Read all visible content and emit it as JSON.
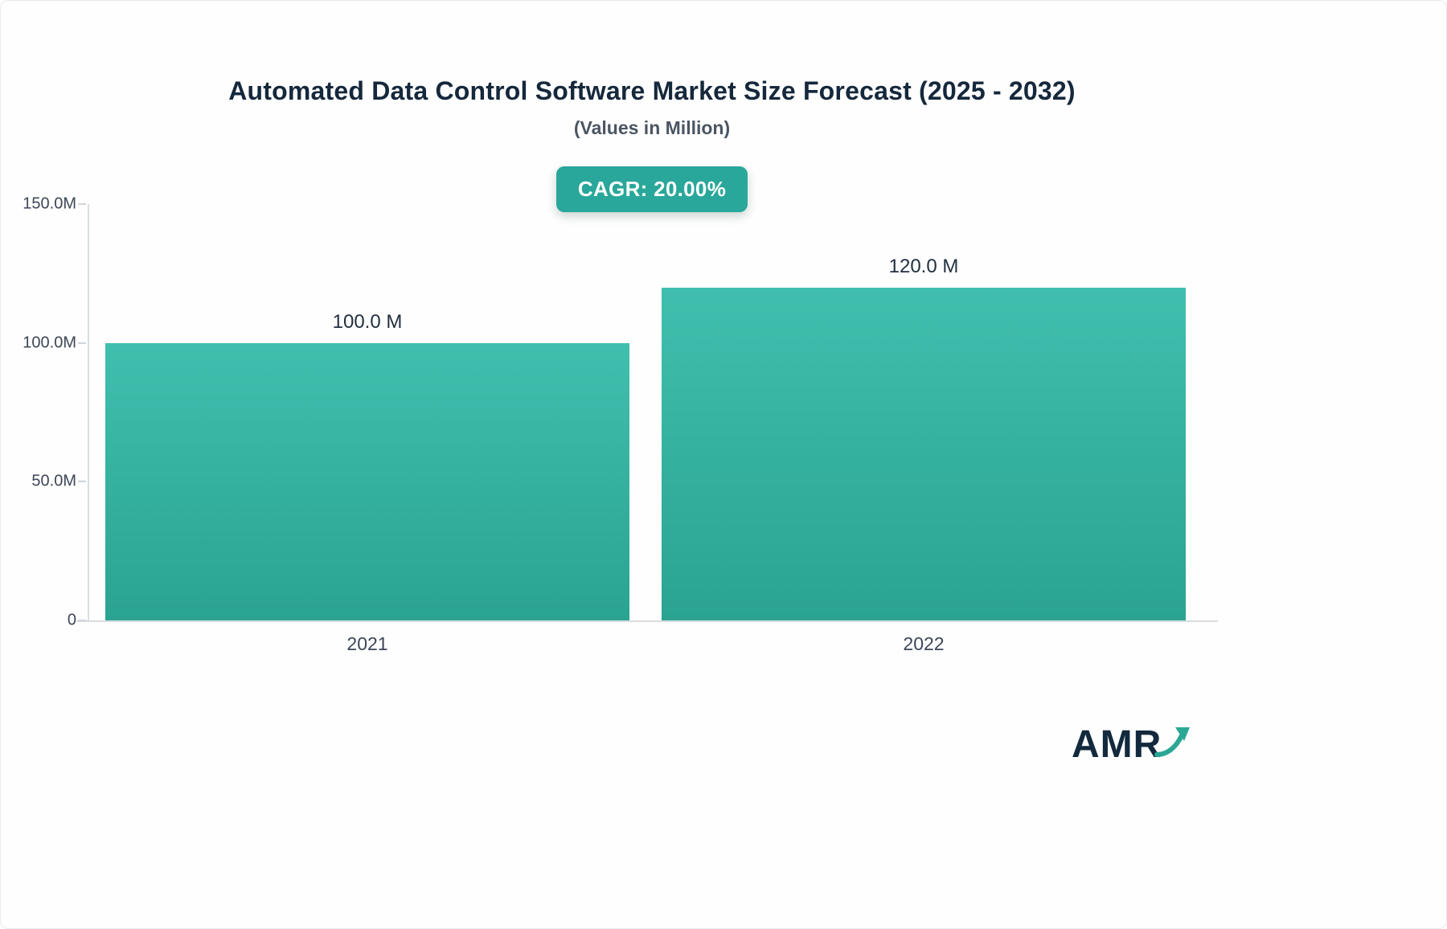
{
  "badge": {
    "label": "CAGR: 20.00%"
  },
  "logo": {
    "text": "AMR"
  },
  "colors": {
    "accent": "#29a79a",
    "bar_top": "#41bfae",
    "bar_bottom": "#2aa392",
    "title_text": "#15283c",
    "axis_text": "#3d4656"
  },
  "chart_data": {
    "type": "bar",
    "title": "Automated Data Control Software Market Size Forecast (2025 - 2032)",
    "subtitle": "(Values in Million)",
    "categories": [
      "2021",
      "2022"
    ],
    "values": [
      100.0,
      120.0
    ],
    "value_labels": [
      "100.0 M",
      "120.0 M"
    ],
    "unit": "Million",
    "xlabel": "",
    "ylabel": "",
    "ylim": [
      0,
      150
    ],
    "yticks": [
      0,
      50,
      100,
      150
    ],
    "ytick_labels": [
      "0",
      "50.0M",
      "100.0M",
      "150.0M"
    ],
    "grid": false,
    "legend": false
  }
}
